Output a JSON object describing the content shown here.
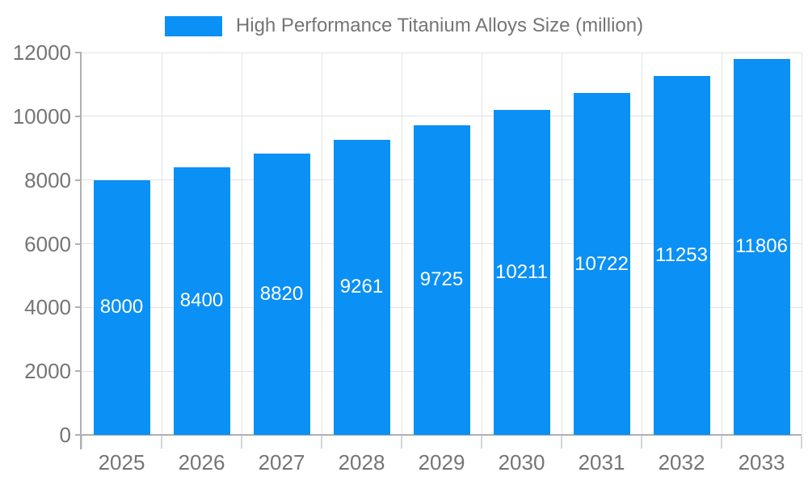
{
  "chart_data": {
    "type": "bar",
    "title": "High Performance Titanium Alloys Size (million)",
    "legend_entries": [
      "High Performance Titanium Alloys Size (million)"
    ],
    "legend_position": "top-center",
    "categories": [
      "2025",
      "2026",
      "2027",
      "2028",
      "2029",
      "2030",
      "2031",
      "2032",
      "2033"
    ],
    "values": [
      8000,
      8400,
      8820,
      9261,
      9725,
      10211,
      10722,
      11253,
      11806
    ],
    "value_labels_visible": true,
    "xlabel": "",
    "ylabel": "",
    "ylim": [
      0,
      12000
    ],
    "yticks": [
      0,
      2000,
      4000,
      6000,
      8000,
      10000,
      12000
    ],
    "grid": true,
    "colors": {
      "bar": "#0b90f5",
      "value_label": "#ffffff",
      "grid_line": "#e3e3e3",
      "axis_line": "#b0b0b0",
      "x_tick_mark": "#d4d4d4",
      "y_tick_mark": "#b0b0b0",
      "tick_label": "#757575",
      "legend_text": "#757575",
      "background": "#ffffff"
    }
  }
}
